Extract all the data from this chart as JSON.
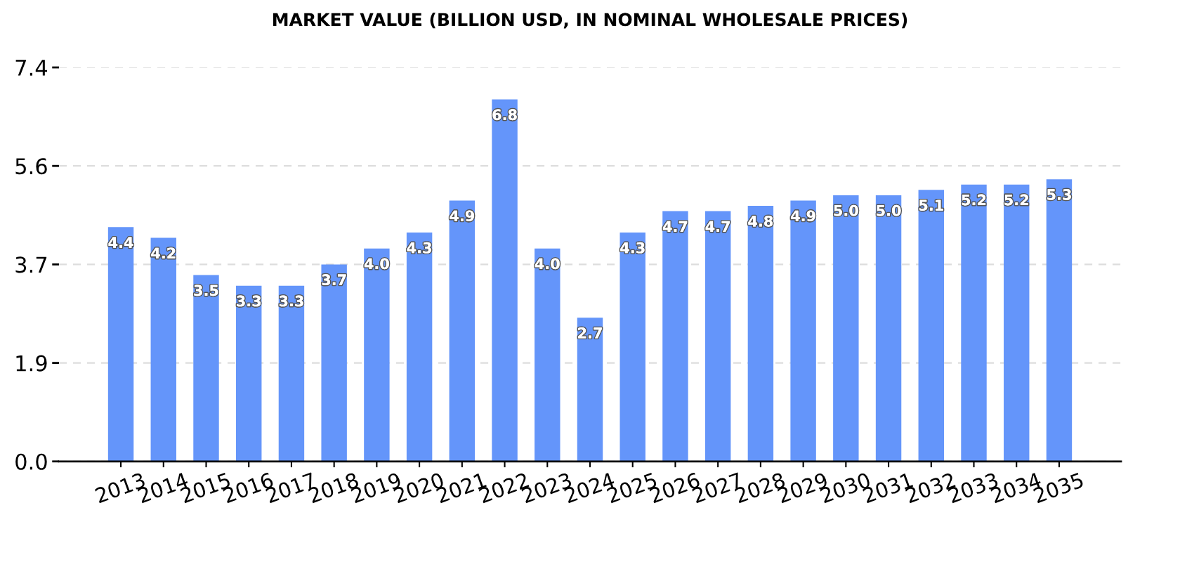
{
  "chart_data": {
    "type": "bar",
    "title": "MARKET VALUE (BILLION USD, IN NOMINAL WHOLESALE PRICES)",
    "categories": [
      "2013",
      "2014",
      "2015",
      "2016",
      "2017",
      "2018",
      "2019",
      "2020",
      "2021",
      "2022",
      "2023",
      "2024",
      "2025",
      "2026",
      "2027",
      "2028",
      "2029",
      "2030",
      "2031",
      "2032",
      "2033",
      "2034",
      "2035"
    ],
    "values": [
      4.4,
      4.2,
      3.5,
      3.3,
      3.3,
      3.7,
      4.0,
      4.3,
      4.9,
      6.8,
      4.0,
      2.7,
      4.3,
      4.7,
      4.7,
      4.8,
      4.9,
      5.0,
      5.0,
      5.1,
      5.2,
      5.2,
      5.3
    ],
    "value_labels": [
      "4.4",
      "4.2",
      "3.5",
      "3.3",
      "3.3",
      "3.7",
      "4.0",
      "4.3",
      "4.9",
      "6.8",
      "4.0",
      "2.7",
      "4.3",
      "4.7",
      "4.7",
      "4.8",
      "4.9",
      "5.0",
      "5.0",
      "5.1",
      "5.2",
      "5.2",
      "5.3"
    ],
    "color": "#6495fa",
    "ylim": [
      0,
      7.4
    ],
    "yticks": [
      {
        "value": 0,
        "label": "0.0"
      },
      {
        "value": 1.85,
        "label": "1.9"
      },
      3.7,
      {
        "value": 5.55,
        "label": "5.6"
      },
      7.4
    ],
    "grid": "y"
  }
}
